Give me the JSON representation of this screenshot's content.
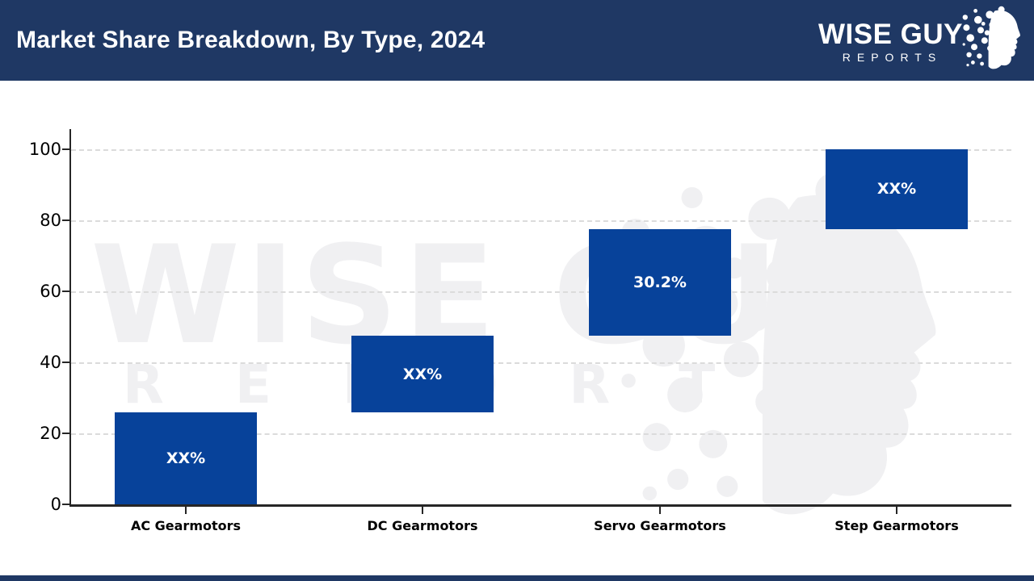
{
  "header": {
    "title": "Market Share Breakdown, By Type, 2024",
    "logo": {
      "line1": "WISE GUY",
      "line2": "REPORTS"
    }
  },
  "watermark": {
    "line1": "WISE GUY",
    "line2": "REPORTS"
  },
  "chart_data": {
    "type": "bar",
    "variant": "floating_waterfall",
    "title": "Market Share Breakdown, By Type, 2024",
    "categories": [
      "AC Gearmotors",
      "DC Gearmotors",
      "Servo Gearmotors",
      "Step Gearmotors"
    ],
    "segments": [
      {
        "category": "AC Gearmotors",
        "start": 0,
        "end": 26,
        "value": 26,
        "label": "XX%"
      },
      {
        "category": "DC Gearmotors",
        "start": 26,
        "end": 47.4,
        "value": 21.4,
        "label": "XX%"
      },
      {
        "category": "Servo Gearmotors",
        "start": 47.4,
        "end": 77.6,
        "value": 30.2,
        "label": "30.2%"
      },
      {
        "category": "Step Gearmotors",
        "start": 77.6,
        "end": 100,
        "value": 22.4,
        "label": "XX%"
      }
    ],
    "xlabel": "",
    "ylabel": "",
    "ylim": [
      0,
      106
    ],
    "yticks": [
      0,
      20,
      40,
      60,
      80,
      100
    ],
    "grid": "horizontal-dashed",
    "legend": "none",
    "bar_color": "#07429A",
    "value_label_color": "#FFFFFF"
  },
  "colors": {
    "header_bg": "#1F3864",
    "footer_bg": "#1F3864",
    "chart_bg": "#FFFFFF",
    "axis": "#262626",
    "gridline": "#DBDBDB",
    "watermark": "#F0F0F2"
  }
}
